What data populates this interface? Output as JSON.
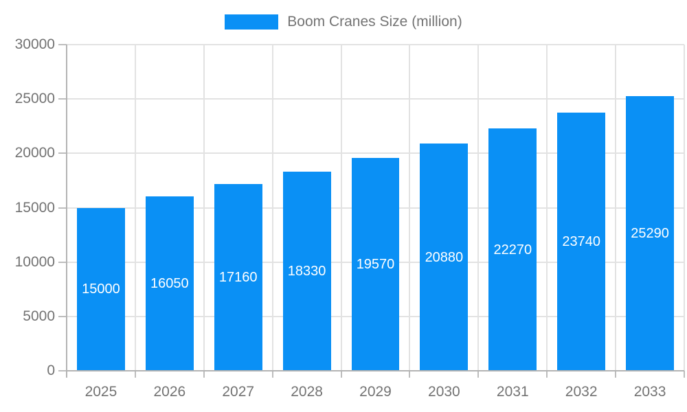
{
  "chart_data": {
    "type": "bar",
    "title": "",
    "legend": {
      "label": "Boom Cranes Size (million)",
      "position": "top-center"
    },
    "categories": [
      "2025",
      "2026",
      "2027",
      "2028",
      "2029",
      "2030",
      "2031",
      "2032",
      "2033"
    ],
    "series": [
      {
        "name": "Boom Cranes Size (million)",
        "values": [
          15000,
          16050,
          17160,
          18330,
          19570,
          20880,
          22270,
          23740,
          25290
        ]
      }
    ],
    "value_labels": [
      "15000",
      "16050",
      "17160",
      "18330",
      "19570",
      "20880",
      "22270",
      "23740",
      "25290"
    ],
    "xlabel": "",
    "ylabel": "",
    "ylim": [
      0,
      30000
    ],
    "yticks": [
      0,
      5000,
      10000,
      15000,
      20000,
      25000,
      30000
    ],
    "grid": true,
    "colors": {
      "bar": "#0a90f5",
      "value_label": "#ffffff",
      "axis_text": "#737373",
      "grid_line": "#e2e2e2",
      "axis_line": "#b3b3b3",
      "tick_mark": "#bdbdbd"
    }
  }
}
